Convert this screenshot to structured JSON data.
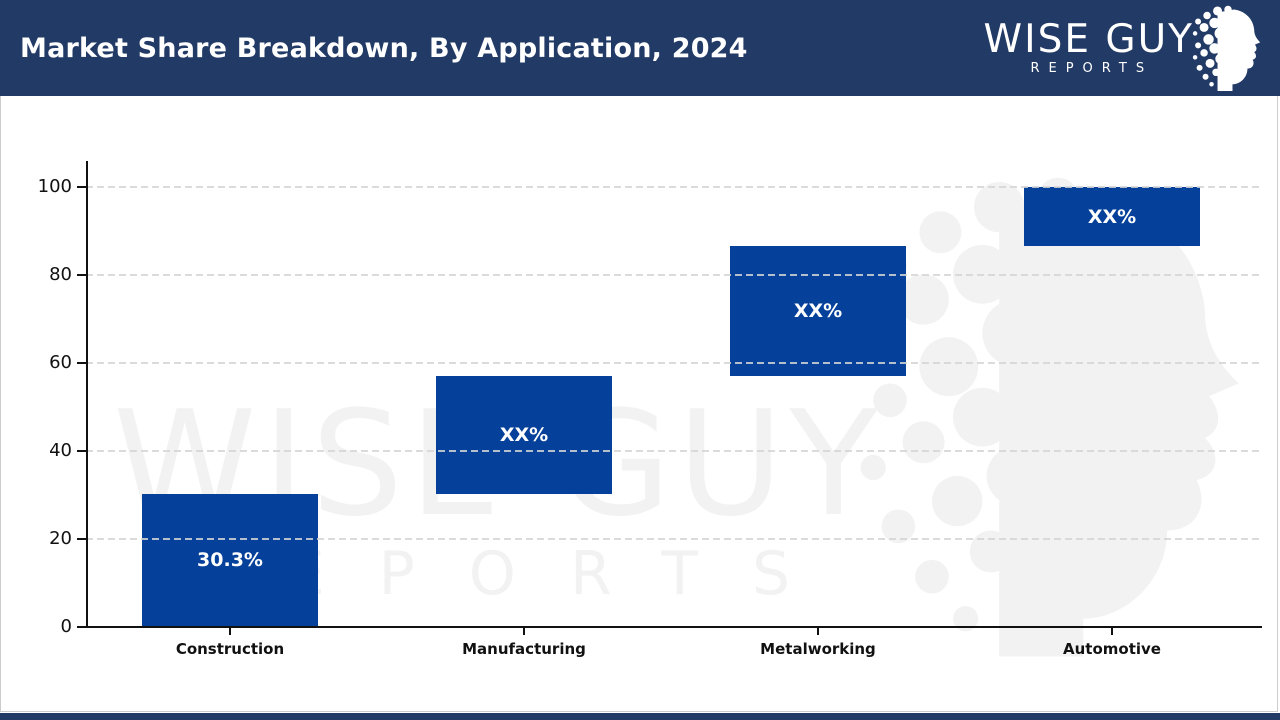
{
  "header": {
    "title": "Market Share Breakdown, By Application, 2024",
    "logo": {
      "line1": "WISE GUY",
      "line2": "REPORTS"
    }
  },
  "watermark": {
    "line1": "WISE GUY",
    "line2": "REPORTS"
  },
  "chart_data": {
    "type": "bar",
    "subtype": "waterfall",
    "title": "Market Share Breakdown, By Application, 2024",
    "categories": [
      "Construction",
      "Manufacturing",
      "Metalworking",
      "Automotive"
    ],
    "segments": [
      {
        "category": "Construction",
        "start": 0,
        "end": 30.3,
        "label": "30.3%"
      },
      {
        "category": "Manufacturing",
        "start": 30.3,
        "end": 57,
        "label": "XX%"
      },
      {
        "category": "Metalworking",
        "start": 57,
        "end": 86.5,
        "label": "XX%"
      },
      {
        "category": "Automotive",
        "start": 86.5,
        "end": 100,
        "label": "XX%"
      }
    ],
    "ylim": [
      0,
      100
    ],
    "yticks": [
      0,
      20,
      40,
      60,
      80,
      100
    ],
    "xlabel": "",
    "ylabel": "",
    "grid": "dashed-horizontal",
    "legend": "none",
    "bar_color": "#05409a",
    "bar_label_color": "#ffffff"
  },
  "colors": {
    "header_bg": "#223a66",
    "footer_bg": "#223a66",
    "bar": "#05409a",
    "axis": "#111111",
    "grid": "#d5d5d5",
    "watermark": "#f2f2f2"
  }
}
